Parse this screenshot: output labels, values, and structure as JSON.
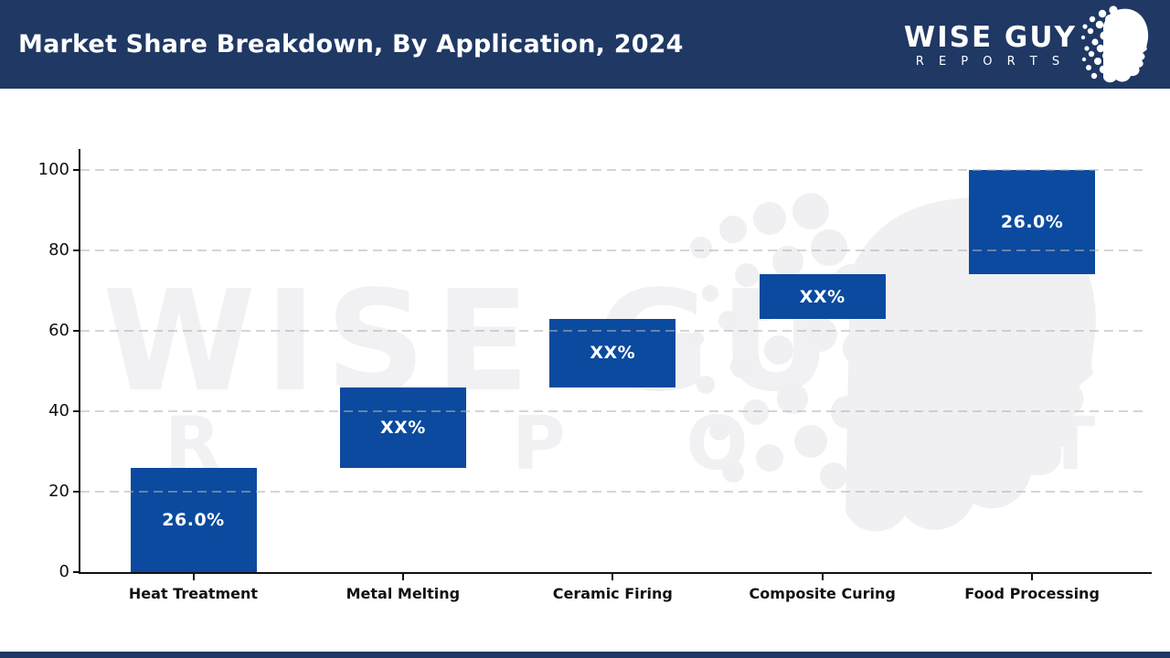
{
  "header": {
    "title": "Market Share Breakdown, By Application, 2024",
    "bg_color": "#1f3864",
    "text_color": "#ffffff"
  },
  "logo": {
    "line1": "WISE GUY",
    "line2": "R E P O R T S"
  },
  "watermark": {
    "line1": "WISE GUY",
    "line2": "R E P O R T S"
  },
  "footer": {
    "bg_color": "#1f3864"
  },
  "chart_data": {
    "type": "bar",
    "subtype": "waterfall",
    "title": "Market Share Breakdown, By Application, 2024",
    "categories": [
      "Heat Treatment",
      "Metal Melting",
      "Ceramic Firing",
      "Composite Curing",
      "Food Processing"
    ],
    "segments": [
      {
        "category": "Heat Treatment",
        "start": 0,
        "end": 26,
        "label": "26.0%"
      },
      {
        "category": "Metal Melting",
        "start": 26,
        "end": 46,
        "label": "XX%"
      },
      {
        "category": "Ceramic Firing",
        "start": 46,
        "end": 63,
        "label": "XX%"
      },
      {
        "category": "Composite Curing",
        "start": 63,
        "end": 74,
        "label": "XX%"
      },
      {
        "category": "Food Processing",
        "start": 74,
        "end": 100,
        "label": "26.0%"
      }
    ],
    "yticks": [
      0,
      20,
      40,
      60,
      80,
      100
    ],
    "ylim": [
      0,
      105
    ],
    "bar_color": "#0b4a9e",
    "bar_label_color": "#ffffff",
    "grid": "horizontal dashed",
    "legend": "none"
  }
}
